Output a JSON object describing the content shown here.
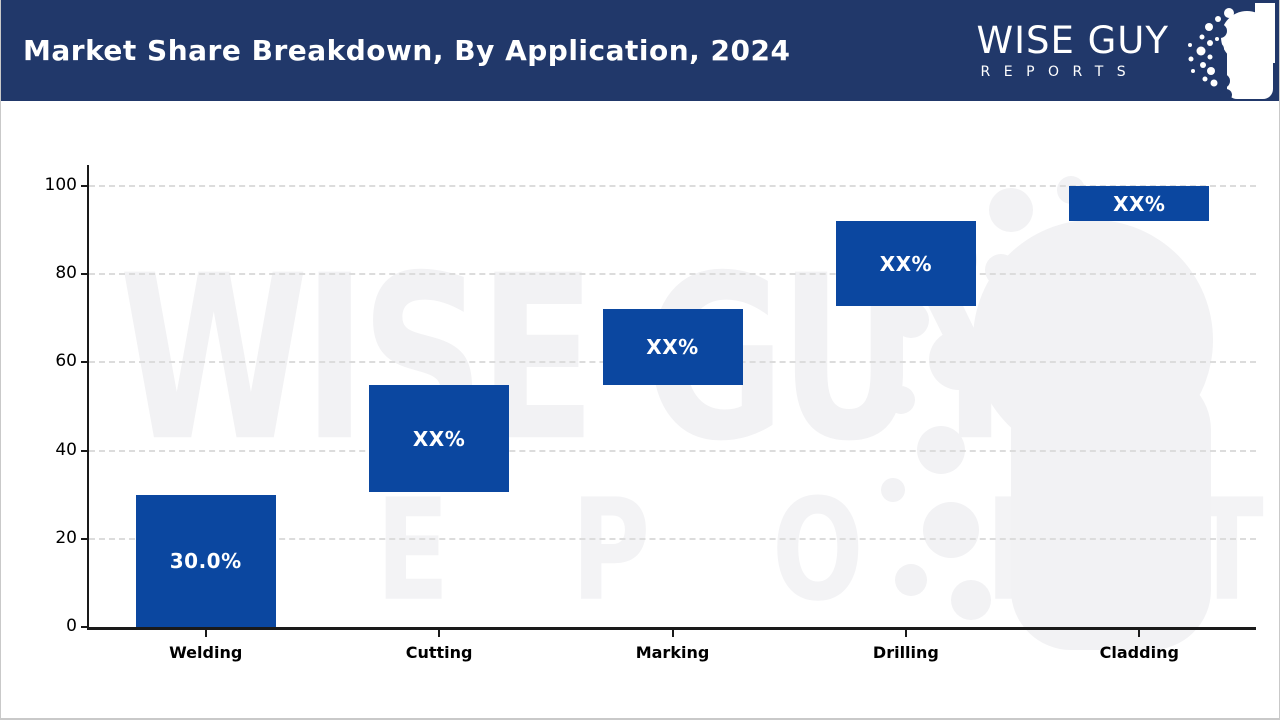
{
  "header": {
    "title": "Market Share Breakdown, By Application, 2024",
    "bg_color": "#21386a",
    "logo": {
      "line1": "WISE GUY",
      "line2": "REPORTS"
    }
  },
  "watermark": {
    "line1": "WISE GUY",
    "line2": "R E P O R T S"
  },
  "chart_data": {
    "type": "bar",
    "subtype": "waterfall",
    "title": "Market Share Breakdown, By Application, 2024",
    "xlabel": "",
    "ylabel": "",
    "categories": [
      "Welding",
      "Cutting",
      "Marking",
      "Drilling",
      "Cladding"
    ],
    "segments": [
      {
        "category": "Welding",
        "start": 0,
        "end": 30.0,
        "label": "30.0%"
      },
      {
        "category": "Cutting",
        "start": 30.5,
        "end": 54.8,
        "label": "XX%"
      },
      {
        "category": "Marking",
        "start": 54.8,
        "end": 72.0,
        "label": "XX%"
      },
      {
        "category": "Drilling",
        "start": 72.8,
        "end": 92.0,
        "label": "XX%"
      },
      {
        "category": "Cladding",
        "start": 92.0,
        "end": 100.0,
        "label": "XX%"
      }
    ],
    "yticks": [
      0,
      20,
      40,
      60,
      80,
      100
    ],
    "ylim": [
      0,
      104.5
    ],
    "grid": true,
    "legend": "none",
    "bar_color": "#0b47a0",
    "bar_label_color": "#ffffff",
    "grid_color": "#dcdcdc",
    "axis_color": "#1a1a1a"
  }
}
